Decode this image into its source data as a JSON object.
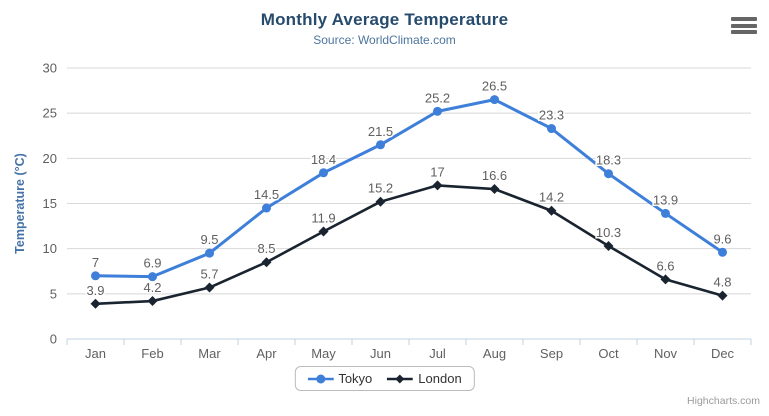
{
  "chart": {
    "title": "Monthly Average Temperature",
    "subtitle": "Source: WorldClimate.com",
    "credits": "Highcharts.com"
  },
  "icons": {
    "context_menu": "hamburger"
  },
  "colors": {
    "title": "#274b6d",
    "subtitle": "#4d759e",
    "axis_title": "#4573a7",
    "axis_labels": "#606060",
    "data_labels": "#606060",
    "gridline": "#d8d8d8",
    "axis_line": "#c0d0e0",
    "legend_text": "#333333",
    "credits": "#999999",
    "background": "#ffffff"
  },
  "chart_data": {
    "type": "line",
    "title": "Monthly Average Temperature",
    "subtitle": "Source: WorldClimate.com",
    "categories": [
      "Jan",
      "Feb",
      "Mar",
      "Apr",
      "May",
      "Jun",
      "Jul",
      "Aug",
      "Sep",
      "Oct",
      "Nov",
      "Dec"
    ],
    "series": [
      {
        "name": "Tokyo",
        "color": "#3d7fd9",
        "marker": "circle",
        "values": [
          7,
          6.9,
          9.5,
          14.5,
          18.4,
          21.5,
          25.2,
          26.5,
          23.3,
          18.3,
          13.9,
          9.6
        ]
      },
      {
        "name": "London",
        "color": "#1a2430",
        "marker": "diamond",
        "values": [
          3.9,
          4.2,
          5.7,
          8.5,
          11.9,
          15.2,
          17,
          16.6,
          14.2,
          10.3,
          6.6,
          4.8
        ]
      }
    ],
    "xlabel": "",
    "ylabel": "Temperature (°C)",
    "ylim": [
      0,
      30
    ],
    "ytick_interval": 5,
    "grid": true,
    "data_labels": true,
    "legend_position": "bottom"
  }
}
